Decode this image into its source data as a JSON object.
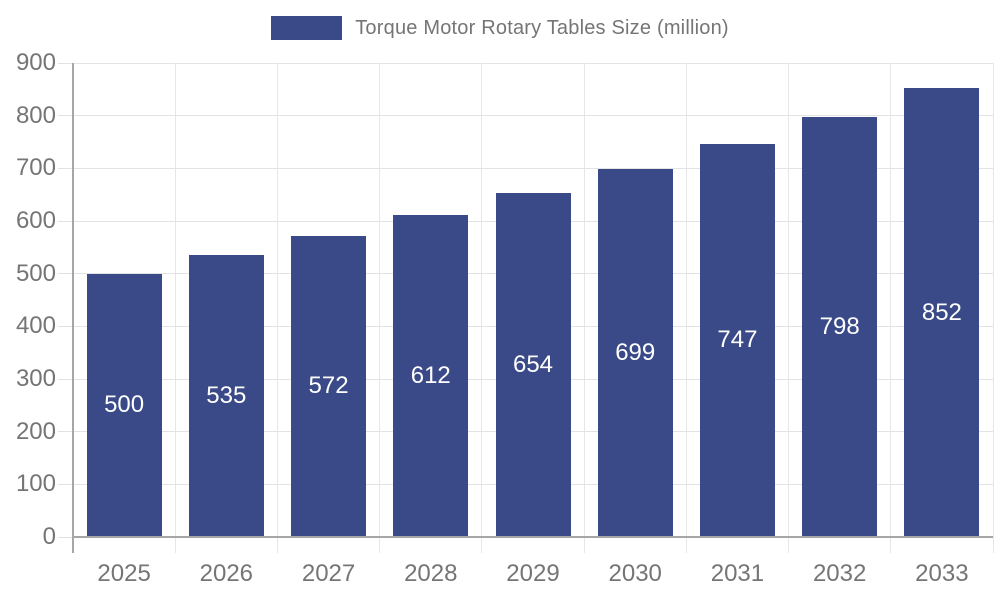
{
  "legend": {
    "label": "Torque Motor Rotary Tables Size (million)"
  },
  "colors": {
    "bar": "#3a4a88",
    "grid_horizontal": "#e3e3e6",
    "grid_vertical": "#e6e6ea",
    "axis": "#a6a6a6",
    "tick_label": "#757575",
    "legend_text": "#757575",
    "bar_label": "#ffffff",
    "background": "#ffffff"
  },
  "chart_data": {
    "type": "bar",
    "title": "Torque Motor Rotary Tables Size (million)",
    "categories": [
      "2025",
      "2026",
      "2027",
      "2028",
      "2029",
      "2030",
      "2031",
      "2032",
      "2033"
    ],
    "values": [
      500,
      535,
      572,
      612,
      654,
      699,
      747,
      798,
      852
    ],
    "bar_labels": [
      "500",
      "535",
      "572",
      "612",
      "654",
      "699",
      "747",
      "798",
      "852"
    ],
    "xlabel": "",
    "ylabel": "",
    "ylim": [
      0,
      900
    ],
    "ytick_step": 100,
    "ytick_labels": [
      "0",
      "100",
      "200",
      "300",
      "400",
      "500",
      "600",
      "700",
      "800",
      "900"
    ],
    "grid": true,
    "legend_position": "top-center",
    "value_label_position": "inside-center"
  }
}
